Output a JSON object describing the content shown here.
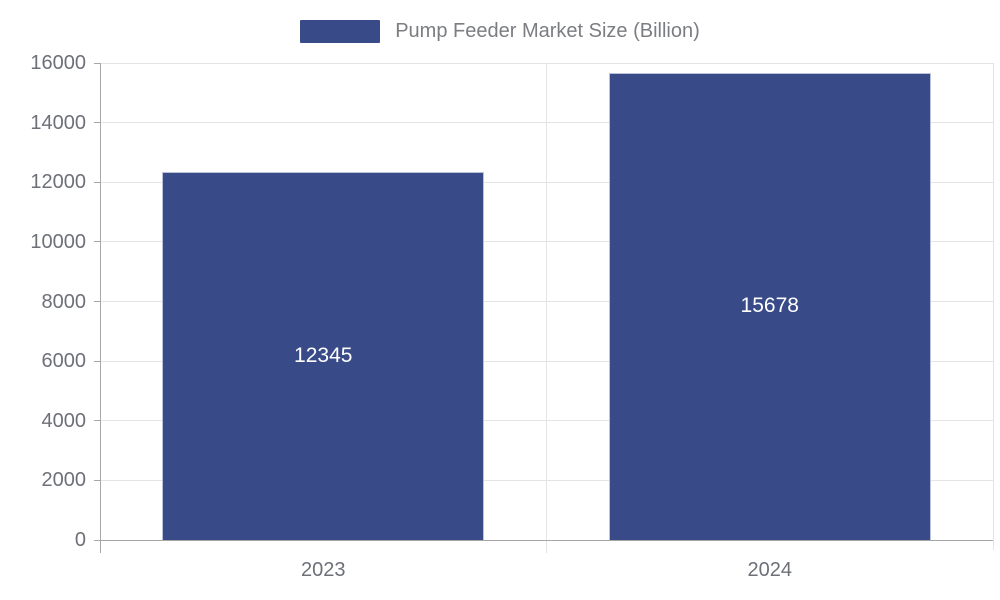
{
  "legend": {
    "label": "Pump Feeder Market Size (Billion)"
  },
  "chart_data": {
    "type": "bar",
    "title": "Pump Feeder Market Size (Billion)",
    "categories": [
      "2023",
      "2024"
    ],
    "series": [
      {
        "name": "Pump Feeder Market Size (Billion)",
        "values": [
          12345,
          15678
        ]
      }
    ],
    "data_labels": [
      "12345",
      "15678"
    ],
    "xlabel": "",
    "ylabel": "",
    "ylim": [
      0,
      16000
    ],
    "yticks": [
      0,
      2000,
      4000,
      6000,
      8000,
      10000,
      12000,
      14000,
      16000
    ],
    "grid": true,
    "legend_position": "top-center",
    "colors": {
      "bar_fill": "#384a88",
      "bar_border": "#bcc2d9",
      "gridline": "#e4e4e4",
      "axis_line": "#a7a7a7",
      "tick_text": "#6e7079",
      "legend_text": "#7b7d82",
      "value_label_text": "#ffffff",
      "background": "#ffffff"
    }
  }
}
